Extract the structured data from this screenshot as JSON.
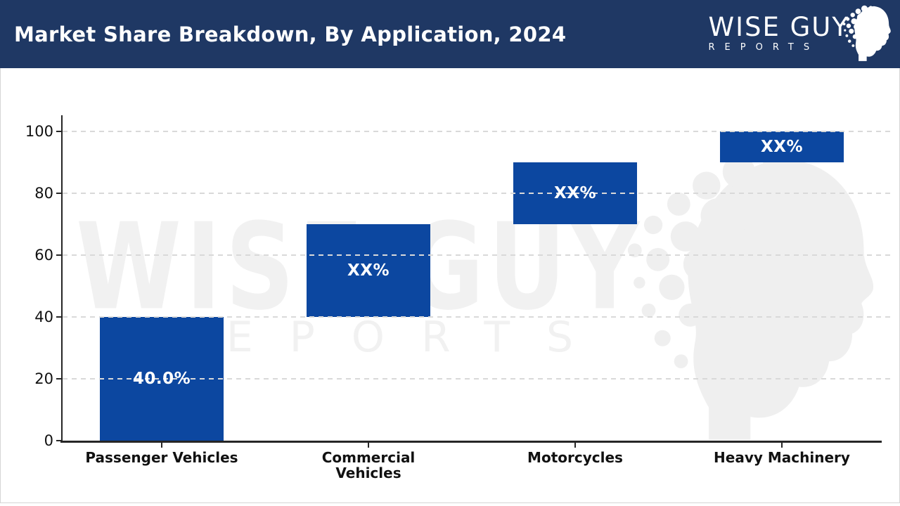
{
  "header": {
    "title": "Market Share Breakdown, By Application, 2024",
    "logo": {
      "line1": "WISE GUY",
      "line2": "REPORTS"
    }
  },
  "watermark": {
    "line1": "WISE GUY",
    "line2": "REPORTS"
  },
  "chart_data": {
    "type": "bar",
    "subtype": "waterfall",
    "title": "Market Share Breakdown, By Application, 2024",
    "categories": [
      "Passenger Vehicles",
      "Commercial\nVehicles",
      "Motorcycles",
      "Heavy Machinery"
    ],
    "bars": [
      {
        "category": "Passenger Vehicles",
        "start": 0,
        "end": 40,
        "label": "40.0%"
      },
      {
        "category": "Commercial Vehicles",
        "start": 40,
        "end": 70,
        "label": "XX%"
      },
      {
        "category": "Motorcycles",
        "start": 70,
        "end": 90,
        "label": "XX%"
      },
      {
        "category": "Heavy Machinery",
        "start": 90,
        "end": 100,
        "label": "XX%"
      }
    ],
    "ylim": [
      0,
      100
    ],
    "yticks": [
      0,
      20,
      40,
      60,
      80,
      100
    ],
    "grid": "dashed-horizontal-over-bars",
    "legend": "none"
  },
  "colors": {
    "header_bg": "#1f3864",
    "bar_blue": "#0c47a0",
    "grid_line": "#d9d9d9",
    "axis": "#262626",
    "tick_text": "#111111",
    "value_label": "#ffffff",
    "watermark": "#f1f1f1",
    "frame_border": "#d5d5d5"
  }
}
